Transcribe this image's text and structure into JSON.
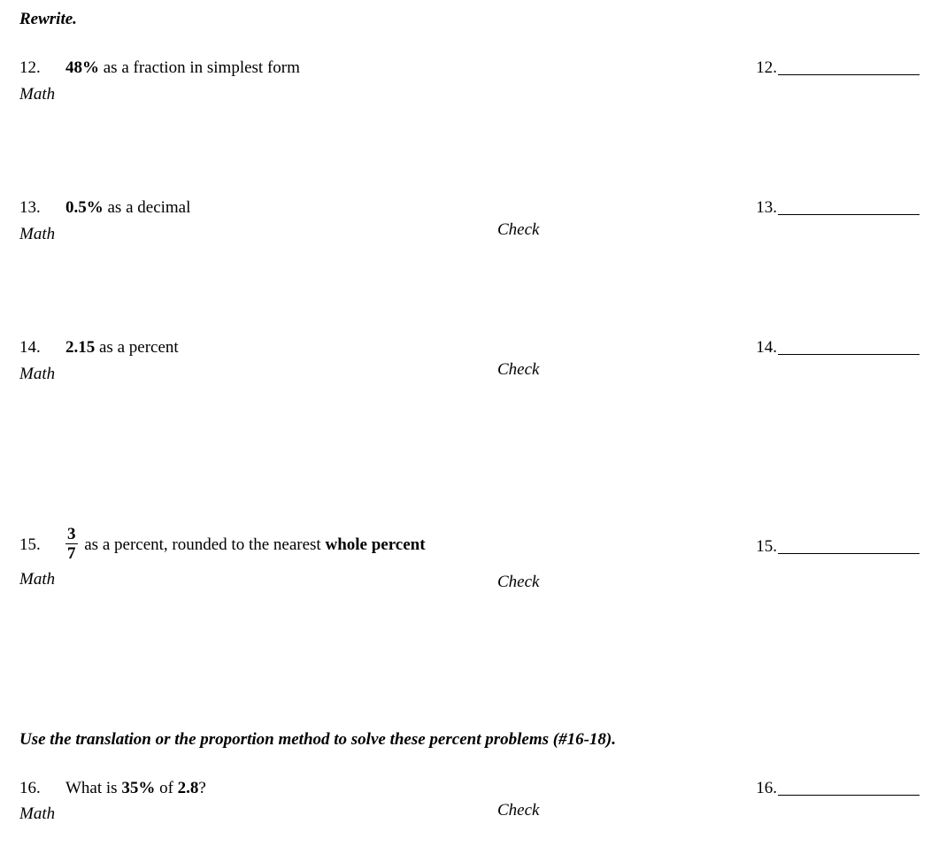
{
  "sections": {
    "rewrite_heading": "Rewrite.",
    "percent_heading": "Use the translation or the proportion method to solve these percent problems (#16-18)."
  },
  "labels": {
    "math": "Math",
    "check": "Check"
  },
  "problems": {
    "p12": {
      "number": "12.",
      "answer_number": "12.",
      "bold_value": "48%",
      "rest_text": " as a fraction in simplest form",
      "show_check": false
    },
    "p13": {
      "number": "13.",
      "answer_number": "13.",
      "bold_value": "0.5%",
      "rest_text": " as a decimal",
      "show_check": true
    },
    "p14": {
      "number": "14.",
      "answer_number": "14.",
      "bold_value": "2.15",
      "rest_text": " as a percent",
      "show_check": true
    },
    "p15": {
      "number": "15.",
      "answer_number": "15.",
      "fraction_top": "3",
      "fraction_bottom": "7",
      "mid_text": " as a percent, rounded to the nearest ",
      "bold_tail": "whole percent",
      "show_check": true
    },
    "p16": {
      "number": "16.",
      "answer_number": "16.",
      "pre_text": "What is ",
      "bold_1": "35%",
      "mid_text": " of ",
      "bold_2": "2.8",
      "tail_text": "?",
      "show_check": true
    }
  }
}
